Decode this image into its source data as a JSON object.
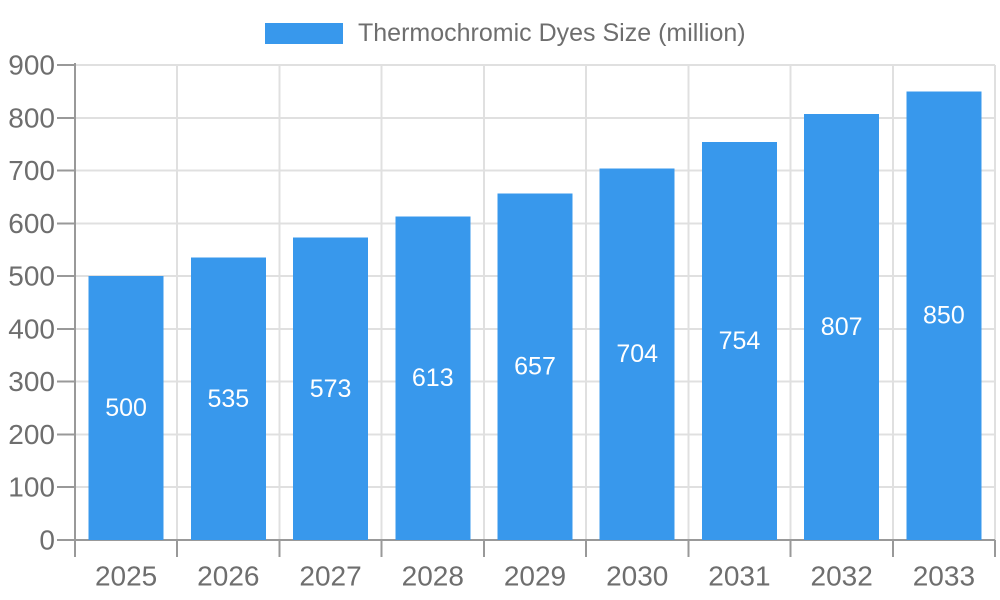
{
  "legend": {
    "label": "Thermochromic Dyes Size (million)"
  },
  "colors": {
    "bar": "#3898EC",
    "grid": "#e0e0e0",
    "axis": "#999999",
    "tick_text": "#6e6e6e",
    "legend_text": "#6e6e6e",
    "bar_label_text": "#ffffff",
    "background": "#ffffff"
  },
  "chart_data": {
    "type": "bar",
    "title": "Thermochromic Dyes Size (million)",
    "categories": [
      "2025",
      "2026",
      "2027",
      "2028",
      "2029",
      "2030",
      "2031",
      "2032",
      "2033"
    ],
    "values": [
      500,
      535,
      573,
      613,
      657,
      704,
      754,
      807,
      850
    ],
    "xlabel": "",
    "ylabel": "",
    "ylim": [
      0,
      900
    ],
    "ytick_step": 100,
    "ytick_labels": [
      "0",
      "100",
      "200",
      "300",
      "400",
      "500",
      "600",
      "700",
      "800",
      "900"
    ],
    "grid": true,
    "legend_position": "top",
    "bar_labels_shown": true
  }
}
